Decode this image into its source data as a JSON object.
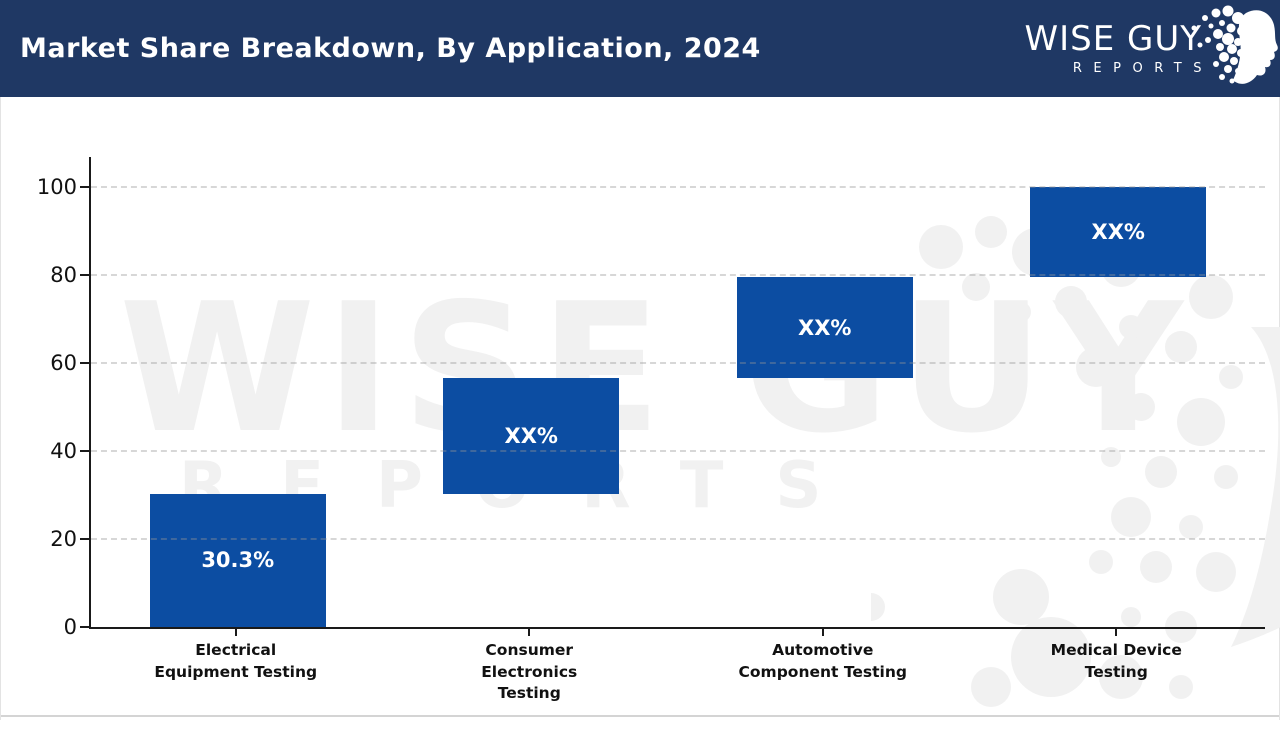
{
  "header": {
    "title": "Market Share Breakdown, By Application, 2024",
    "logo_line1": "WISE GUY",
    "logo_line2": "REPORTS"
  },
  "watermark": {
    "line1": "WISE GUY",
    "line2": "REPORTS"
  },
  "colors": {
    "header_bg": "#1f3864",
    "bar_blue": "#0c4da2",
    "axis_black": "#1a1a1a",
    "grid_gray": "#dcdcdc",
    "watermark_gray": "#f1f1f1"
  },
  "chart_data": {
    "type": "bar",
    "subtype": "waterfall-floating-bars",
    "title": "Market Share Breakdown, By Application, 2024",
    "categories": [
      "Electrical Equipment Testing",
      "Consumer Electronics Testing",
      "Automotive Component Testing",
      "Medical Device Testing"
    ],
    "category_label_lines": [
      [
        "Electrical",
        "Equipment Testing"
      ],
      [
        "Consumer",
        "Electronics",
        "Testing"
      ],
      [
        "Automotive",
        "Component Testing"
      ],
      [
        "Medical Device",
        "Testing"
      ]
    ],
    "segments": [
      {
        "category": "Electrical Equipment Testing",
        "start": 0,
        "end": 30.3,
        "label": "30.3%"
      },
      {
        "category": "Consumer Electronics Testing",
        "start": 30.3,
        "end": 56.6,
        "label": "XX%"
      },
      {
        "category": "Automotive Component Testing",
        "start": 56.6,
        "end": 79.5,
        "label": "XX%"
      },
      {
        "category": "Medical Device Testing",
        "start": 79.5,
        "end": 100,
        "label": "XX%"
      }
    ],
    "xlabel": "",
    "ylabel": "",
    "yticks": [
      0,
      20,
      40,
      60,
      80,
      100
    ],
    "ylim": [
      0,
      106.8
    ],
    "grid": "horizontal-dashed",
    "legend": "none",
    "bar_color": "#0c4da2"
  }
}
